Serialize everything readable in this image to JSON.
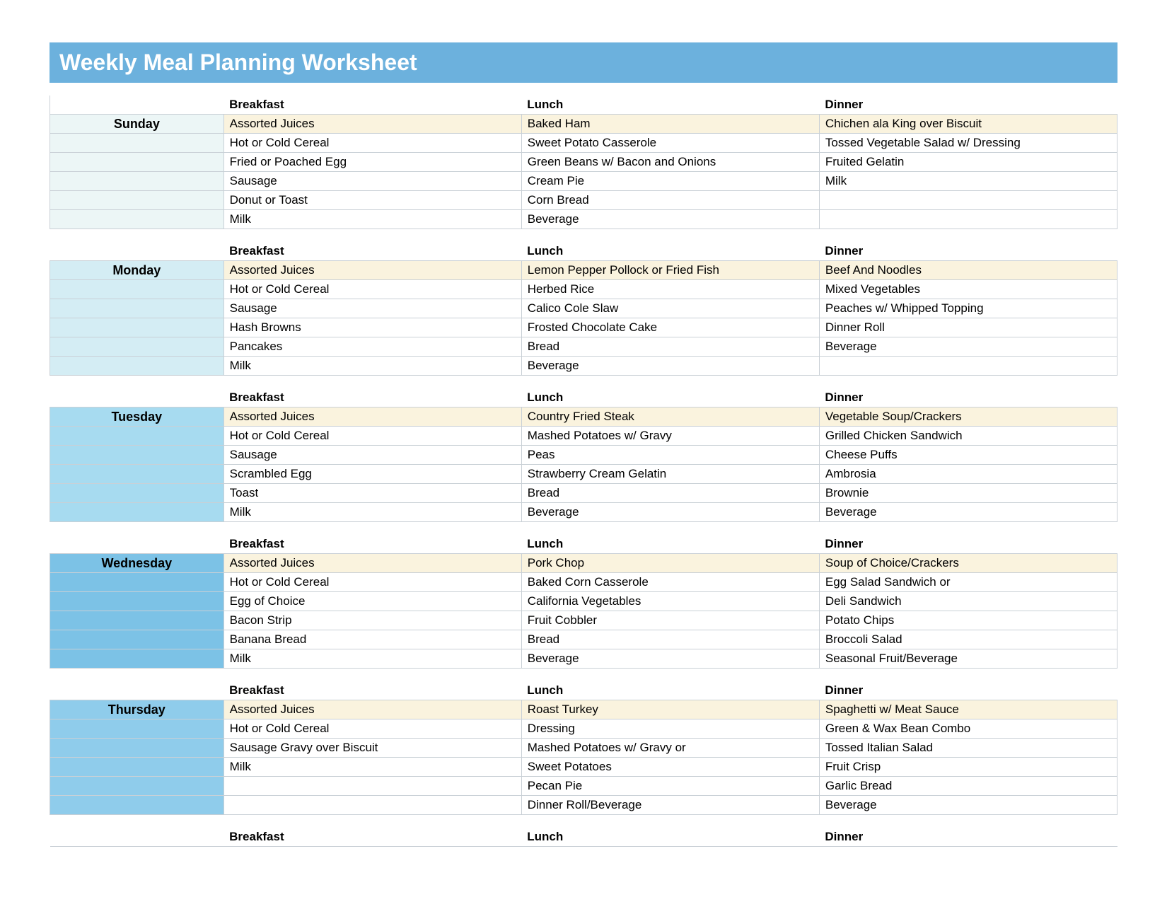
{
  "title": "Weekly Meal Planning Worksheet",
  "meal_headers": [
    "Breakfast",
    "Lunch",
    "Dinner"
  ],
  "colors": {
    "title_bg": "#6cb1dd",
    "title_text": "#ffffff",
    "highlight_row": "#faf3de",
    "grid_border": "#c9d0d6",
    "text": "#000000",
    "day_shades": {
      "Sunday": "#ecf6f6",
      "Monday": "#d4edf4",
      "Tuesday": "#a7dbf0",
      "Wednesday": "#7cc2e6",
      "Thursday": "#8fcceb"
    }
  },
  "days": [
    {
      "name": "Sunday",
      "shade": "#ecf6f6",
      "rows": [
        [
          "Assorted Juices",
          "Baked Ham",
          "Chichen ala King over Biscuit"
        ],
        [
          "Hot or Cold Cereal",
          "Sweet Potato Casserole",
          "Tossed Vegetable Salad w/ Dressing"
        ],
        [
          "Fried or Poached Egg",
          "Green Beans w/ Bacon and Onions",
          "Fruited Gelatin"
        ],
        [
          "Sausage",
          "Cream Pie",
          "Milk"
        ],
        [
          "Donut or Toast",
          "Corn Bread",
          ""
        ],
        [
          "Milk",
          "Beverage",
          ""
        ]
      ]
    },
    {
      "name": "Monday",
      "shade": "#d4edf4",
      "rows": [
        [
          "Assorted Juices",
          "Lemon Pepper Pollock or Fried Fish",
          "Beef And Noodles"
        ],
        [
          "Hot or Cold Cereal",
          "Herbed Rice",
          "Mixed Vegetables"
        ],
        [
          "Sausage",
          "Calico Cole Slaw",
          "Peaches w/ Whipped Topping"
        ],
        [
          "Hash Browns",
          "Frosted Chocolate Cake",
          "Dinner Roll"
        ],
        [
          "Pancakes",
          "Bread",
          "Beverage"
        ],
        [
          "Milk",
          "Beverage",
          ""
        ]
      ]
    },
    {
      "name": "Tuesday",
      "shade": "#a7dbf0",
      "rows": [
        [
          "Assorted Juices",
          "Country Fried Steak",
          "Vegetable Soup/Crackers"
        ],
        [
          "Hot or Cold Cereal",
          "Mashed Potatoes w/ Gravy",
          "Grilled Chicken Sandwich"
        ],
        [
          "Sausage",
          "Peas",
          "Cheese Puffs"
        ],
        [
          "Scrambled Egg",
          "Strawberry Cream Gelatin",
          "Ambrosia"
        ],
        [
          "Toast",
          "Bread",
          "Brownie"
        ],
        [
          "Milk",
          "Beverage",
          "Beverage"
        ]
      ]
    },
    {
      "name": "Wednesday",
      "shade": "#7cc2e6",
      "rows": [
        [
          "Assorted Juices",
          "Pork Chop",
          "Soup of Choice/Crackers"
        ],
        [
          "Hot or Cold Cereal",
          "Baked Corn Casserole",
          "Egg Salad Sandwich or"
        ],
        [
          "Egg of Choice",
          "California Vegetables",
          "Deli Sandwich"
        ],
        [
          "Bacon Strip",
          "Fruit Cobbler",
          "Potato Chips"
        ],
        [
          "Banana Bread",
          "Bread",
          "Broccoli Salad"
        ],
        [
          "Milk",
          "Beverage",
          "Seasonal Fruit/Beverage"
        ]
      ]
    },
    {
      "name": "Thursday",
      "shade": "#8fcceb",
      "rows": [
        [
          "Assorted Juices",
          "Roast Turkey",
          "Spaghetti w/ Meat Sauce"
        ],
        [
          "Hot or Cold Cereal",
          "Dressing",
          "Green & Wax Bean Combo"
        ],
        [
          "Sausage Gravy over Biscuit",
          "Mashed Potatoes w/ Gravy or",
          "Tossed Italian Salad"
        ],
        [
          "Milk",
          "Sweet Potatoes",
          "Fruit Crisp"
        ],
        [
          "",
          "Pecan Pie",
          "Garlic Bread"
        ],
        [
          "",
          "Dinner Roll/Beverage",
          " Beverage"
        ]
      ]
    }
  ],
  "trailing_header": true
}
